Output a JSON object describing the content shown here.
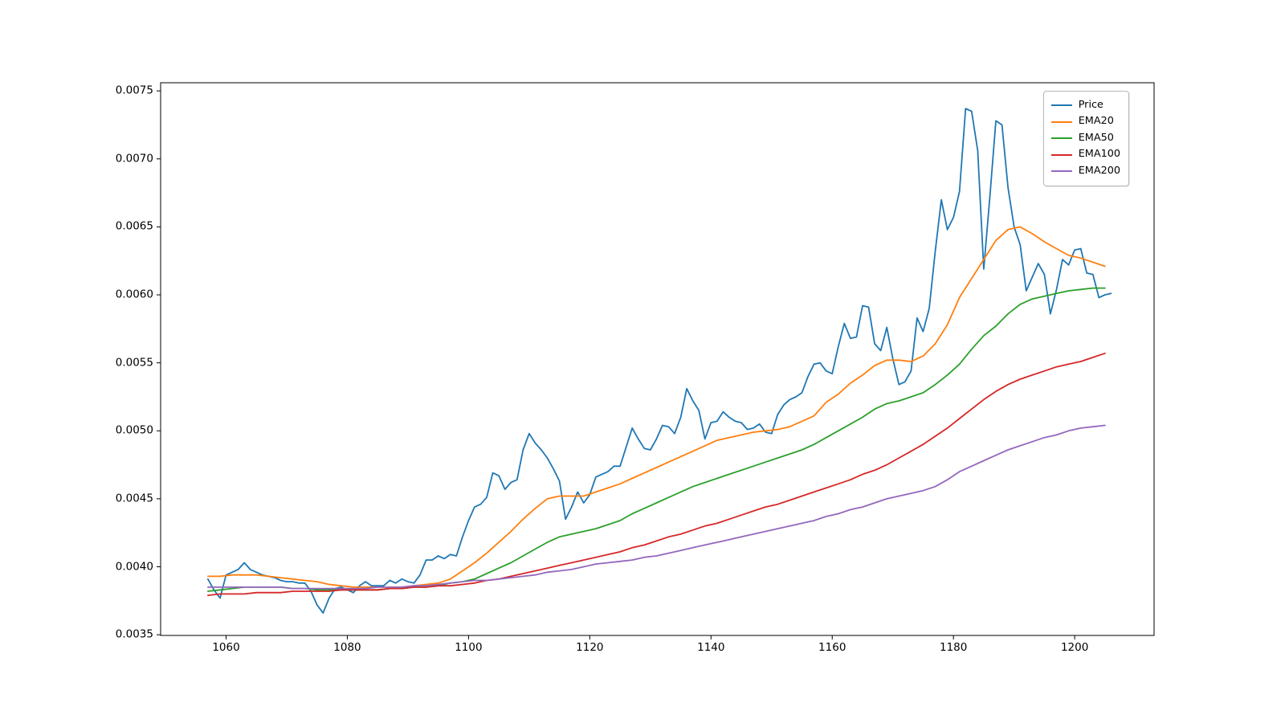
{
  "figure": {
    "background": "#ffffff"
  },
  "chart_data": {
    "type": "line",
    "title": "",
    "xlabel": "",
    "ylabel": "",
    "grid": false,
    "legend_position": "upper-right",
    "xlim": [
      1049.2,
      1213.1
    ],
    "ylim": [
      0.003495,
      0.00756
    ],
    "x_ticks": [
      1060,
      1080,
      1100,
      1120,
      1140,
      1160,
      1180,
      1200
    ],
    "x_tick_labels": [
      "1060",
      "1080",
      "1100",
      "1120",
      "1140",
      "1160",
      "1180",
      "1200"
    ],
    "y_ticks": [
      0.0035,
      0.004,
      0.0045,
      0.005,
      0.0055,
      0.006,
      0.0065,
      0.007,
      0.0075
    ],
    "y_tick_labels": [
      "0.0035",
      "0.0040",
      "0.0045",
      "0.0050",
      "0.0055",
      "0.0060",
      "0.0065",
      "0.0070",
      "0.0075"
    ],
    "series": [
      {
        "name": "Price",
        "color": "#1f77b4",
        "x_start": 1057,
        "x_step": 1,
        "values": [
          0.00391,
          0.00383,
          0.00377,
          0.00394,
          0.00396,
          0.00398,
          0.00403,
          0.00398,
          0.00396,
          0.00394,
          0.00393,
          0.00392,
          0.0039,
          0.00389,
          0.00389,
          0.00388,
          0.00388,
          0.00382,
          0.00372,
          0.00366,
          0.00377,
          0.00384,
          0.00385,
          0.00383,
          0.00381,
          0.00386,
          0.00389,
          0.00386,
          0.00386,
          0.00386,
          0.0039,
          0.00388,
          0.00391,
          0.00389,
          0.00388,
          0.00394,
          0.00405,
          0.00405,
          0.00408,
          0.00406,
          0.00409,
          0.00408,
          0.00422,
          0.00434,
          0.00444,
          0.00446,
          0.00451,
          0.00469,
          0.00467,
          0.00457,
          0.00462,
          0.00464,
          0.00486,
          0.00498,
          0.00491,
          0.00486,
          0.0048,
          0.00472,
          0.00463,
          0.00435,
          0.00444,
          0.00455,
          0.00447,
          0.00453,
          0.00466,
          0.00468,
          0.0047,
          0.00474,
          0.00474,
          0.00488,
          0.00502,
          0.00494,
          0.00487,
          0.00486,
          0.00494,
          0.00504,
          0.00503,
          0.00498,
          0.0051,
          0.00531,
          0.00522,
          0.00515,
          0.00494,
          0.00506,
          0.00507,
          0.00514,
          0.0051,
          0.00507,
          0.00506,
          0.00501,
          0.00502,
          0.00505,
          0.00499,
          0.00498,
          0.00512,
          0.00519,
          0.00523,
          0.00525,
          0.00528,
          0.0054,
          0.00549,
          0.0055,
          0.00544,
          0.00542,
          0.00562,
          0.00579,
          0.00568,
          0.00569,
          0.00592,
          0.00591,
          0.00564,
          0.00559,
          0.00576,
          0.00553,
          0.00534,
          0.00536,
          0.00544,
          0.00583,
          0.00573,
          0.0059,
          0.00632,
          0.0067,
          0.00648,
          0.00657,
          0.00676,
          0.00737,
          0.00735,
          0.00706,
          0.00619,
          0.00672,
          0.00728,
          0.00725,
          0.00679,
          0.0065,
          0.00637,
          0.00603,
          0.00613,
          0.00623,
          0.00615,
          0.00586,
          0.00604,
          0.00626,
          0.00622,
          0.00633,
          0.00634,
          0.00616,
          0.00615,
          0.00598,
          0.006,
          0.00601
        ]
      },
      {
        "name": "EMA20",
        "color": "#ff7f0e",
        "x_start": 1057,
        "x_step": 2,
        "values": [
          0.00393,
          0.00393,
          0.00394,
          0.00394,
          0.00394,
          0.00393,
          0.00392,
          0.00391,
          0.0039,
          0.00389,
          0.00387,
          0.00386,
          0.00385,
          0.00385,
          0.00385,
          0.00385,
          0.00385,
          0.00386,
          0.00387,
          0.00388,
          0.00391,
          0.00397,
          0.00403,
          0.0041,
          0.00418,
          0.00426,
          0.00435,
          0.00443,
          0.0045,
          0.00452,
          0.00452,
          0.00452,
          0.00455,
          0.00458,
          0.00461,
          0.00465,
          0.00469,
          0.00473,
          0.00477,
          0.00481,
          0.00485,
          0.00489,
          0.00493,
          0.00495,
          0.00497,
          0.00499,
          0.005,
          0.00501,
          0.00503,
          0.00507,
          0.00511,
          0.00521,
          0.00527,
          0.00535,
          0.00541,
          0.00548,
          0.00552,
          0.00552,
          0.00551,
          0.00555,
          0.00564,
          0.00578,
          0.00598,
          0.00612,
          0.00626,
          0.0064,
          0.00648,
          0.0065,
          0.00645,
          0.00639,
          0.00634,
          0.00629,
          0.00627,
          0.00624,
          0.00621
        ]
      },
      {
        "name": "EMA50",
        "color": "#2ca02c",
        "x_start": 1057,
        "x_step": 2,
        "values": [
          0.00382,
          0.00383,
          0.00384,
          0.00385,
          0.00385,
          0.00385,
          0.00385,
          0.00384,
          0.00384,
          0.00383,
          0.00383,
          0.00383,
          0.00383,
          0.00383,
          0.00383,
          0.00384,
          0.00384,
          0.00385,
          0.00385,
          0.00386,
          0.00388,
          0.00389,
          0.00391,
          0.00395,
          0.00399,
          0.00403,
          0.00408,
          0.00413,
          0.00418,
          0.00422,
          0.00424,
          0.00426,
          0.00428,
          0.00431,
          0.00434,
          0.00439,
          0.00443,
          0.00447,
          0.00451,
          0.00455,
          0.00459,
          0.00462,
          0.00465,
          0.00468,
          0.00471,
          0.00474,
          0.00477,
          0.0048,
          0.00483,
          0.00486,
          0.0049,
          0.00495,
          0.005,
          0.00505,
          0.0051,
          0.00516,
          0.0052,
          0.00522,
          0.00525,
          0.00528,
          0.00534,
          0.00541,
          0.00549,
          0.0056,
          0.0057,
          0.00577,
          0.00586,
          0.00593,
          0.00597,
          0.00599,
          0.00601,
          0.00603,
          0.00604,
          0.00605,
          0.00605
        ]
      },
      {
        "name": "EMA100",
        "color": "#d62728",
        "x_start": 1057,
        "x_step": 2,
        "values": [
          0.00379,
          0.0038,
          0.0038,
          0.0038,
          0.00381,
          0.00381,
          0.00381,
          0.00382,
          0.00382,
          0.00382,
          0.00382,
          0.00383,
          0.00383,
          0.00383,
          0.00383,
          0.00384,
          0.00384,
          0.00385,
          0.00385,
          0.00386,
          0.00386,
          0.00387,
          0.00388,
          0.0039,
          0.00391,
          0.00393,
          0.00395,
          0.00397,
          0.00399,
          0.00401,
          0.00403,
          0.00405,
          0.00407,
          0.00409,
          0.00411,
          0.00414,
          0.00416,
          0.00419,
          0.00422,
          0.00424,
          0.00427,
          0.0043,
          0.00432,
          0.00435,
          0.00438,
          0.00441,
          0.00444,
          0.00446,
          0.00449,
          0.00452,
          0.00455,
          0.00458,
          0.00461,
          0.00464,
          0.00468,
          0.00471,
          0.00475,
          0.0048,
          0.00485,
          0.0049,
          0.00496,
          0.00502,
          0.00509,
          0.00516,
          0.00523,
          0.00529,
          0.00534,
          0.00538,
          0.00541,
          0.00544,
          0.00547,
          0.00549,
          0.00551,
          0.00554,
          0.00557
        ]
      },
      {
        "name": "EMA200",
        "color": "#9467bd",
        "x_start": 1057,
        "x_step": 2,
        "values": [
          0.00385,
          0.00385,
          0.00385,
          0.00385,
          0.00385,
          0.00385,
          0.00385,
          0.00384,
          0.00384,
          0.00384,
          0.00384,
          0.00384,
          0.00384,
          0.00384,
          0.00385,
          0.00385,
          0.00385,
          0.00386,
          0.00386,
          0.00387,
          0.00388,
          0.00389,
          0.0039,
          0.0039,
          0.00391,
          0.00392,
          0.00393,
          0.00394,
          0.00396,
          0.00397,
          0.00398,
          0.004,
          0.00402,
          0.00403,
          0.00404,
          0.00405,
          0.00407,
          0.00408,
          0.0041,
          0.00412,
          0.00414,
          0.00416,
          0.00418,
          0.0042,
          0.00422,
          0.00424,
          0.00426,
          0.00428,
          0.0043,
          0.00432,
          0.00434,
          0.00437,
          0.00439,
          0.00442,
          0.00444,
          0.00447,
          0.0045,
          0.00452,
          0.00454,
          0.00456,
          0.00459,
          0.00464,
          0.0047,
          0.00474,
          0.00478,
          0.00482,
          0.00486,
          0.00489,
          0.00492,
          0.00495,
          0.00497,
          0.005,
          0.00502,
          0.00503,
          0.00504
        ]
      }
    ]
  }
}
